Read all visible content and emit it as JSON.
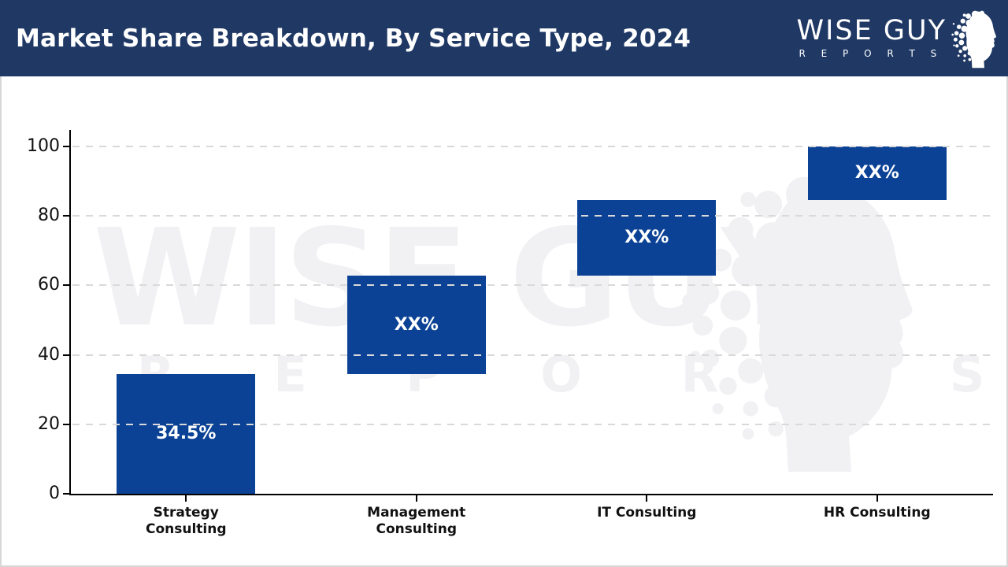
{
  "header": {
    "title": "Market Share Breakdown, By Service Type, 2024",
    "bg_color": "#1f3864",
    "logo": {
      "line1": "WISE GUY",
      "line2": "R E P O R T S",
      "icon": "head-profile-dots"
    }
  },
  "watermark": {
    "line1": "WISE GUY",
    "line2": "R E P O R T S",
    "color": "#f1f1f4"
  },
  "chart_data": {
    "type": "bar",
    "subtype": "floating-waterfall",
    "title": "Market Share Breakdown, By Service Type, 2024",
    "categories": [
      "Strategy Consulting",
      "Management Consulting",
      "IT Consulting",
      "HR Consulting"
    ],
    "series": [
      {
        "name": "Market Share (%)",
        "segments": [
          {
            "category": "Strategy Consulting",
            "start": 0,
            "end": 34.5,
            "label": "34.5%"
          },
          {
            "category": "Management Consulting",
            "start": 34.5,
            "end": 62.7,
            "label": "XX%"
          },
          {
            "category": "IT Consulting",
            "start": 62.7,
            "end": 84.6,
            "label": "XX%"
          },
          {
            "category": "HR Consulting",
            "start": 84.6,
            "end": 100,
            "label": "XX%"
          }
        ]
      }
    ],
    "ylim": [
      0,
      105
    ],
    "yticks": [
      0,
      20,
      40,
      60,
      80,
      100
    ],
    "grid": "horizontal-dashed",
    "legend": "none",
    "bar_color": "#0b4295",
    "bar_label_color": "#ffffff",
    "axis_color": "#000000",
    "grid_color": "#d9d9d9"
  }
}
